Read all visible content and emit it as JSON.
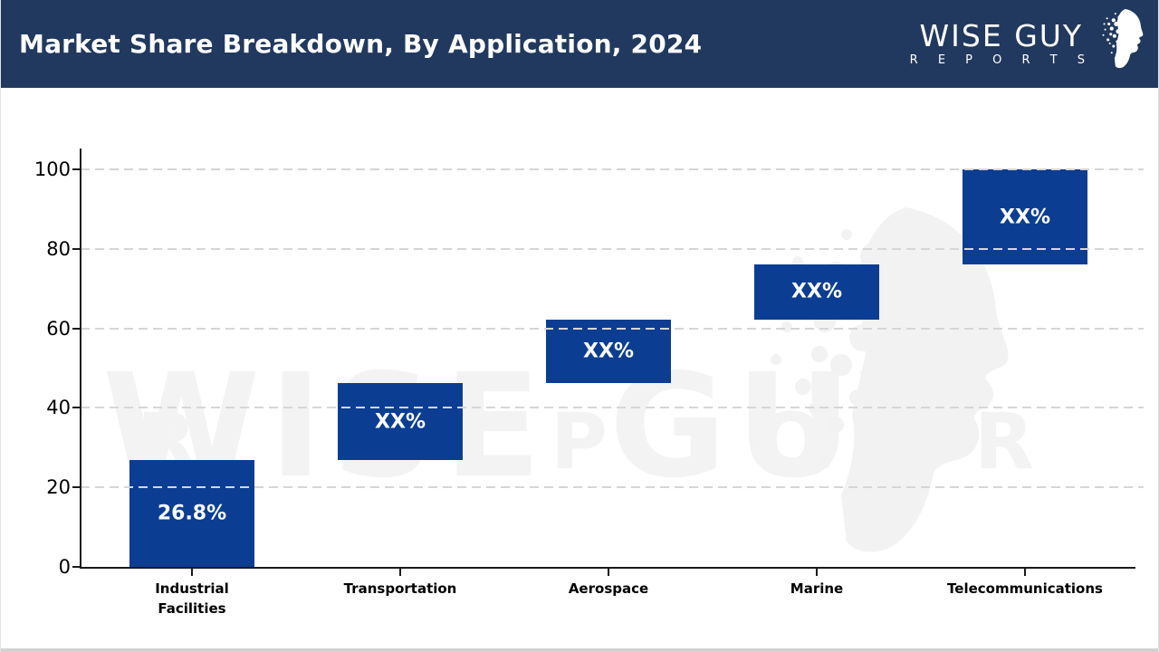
{
  "header": {
    "title": "Market Share Breakdown, By Application, 2024",
    "bg_color": "#21395e",
    "logo": {
      "line1": "WISE GUY",
      "line2": "R E P O R T S"
    }
  },
  "watermark": {
    "line1": "WISE GUY",
    "line2": "R E P O R T S"
  },
  "chart_data": {
    "type": "bar",
    "subtype": "waterfall",
    "title": "Market Share Breakdown, By Application, 2024",
    "categories": [
      "Industrial\nFacilities",
      "Transportation",
      "Aerospace",
      "Marine",
      "Telecommunications"
    ],
    "segments": [
      {
        "category": "Industrial Facilities",
        "start": 0,
        "end": 26.8,
        "label": "26.8%"
      },
      {
        "category": "Transportation",
        "start": 26.8,
        "end": 46.2,
        "label": "XX%"
      },
      {
        "category": "Aerospace",
        "start": 46.2,
        "end": 62.3,
        "label": "XX%"
      },
      {
        "category": "Marine",
        "start": 62.3,
        "end": 76.0,
        "label": "XX%"
      },
      {
        "category": "Telecommunications",
        "start": 76.0,
        "end": 100,
        "label": "XX%"
      }
    ],
    "ylim": [
      0,
      100
    ],
    "yticks": [
      0,
      20,
      40,
      60,
      80,
      100
    ],
    "grid": "horizontal-dashed",
    "legend": "none",
    "bar_color": "#0b3e92",
    "bar_label_color": "#ffffff"
  }
}
